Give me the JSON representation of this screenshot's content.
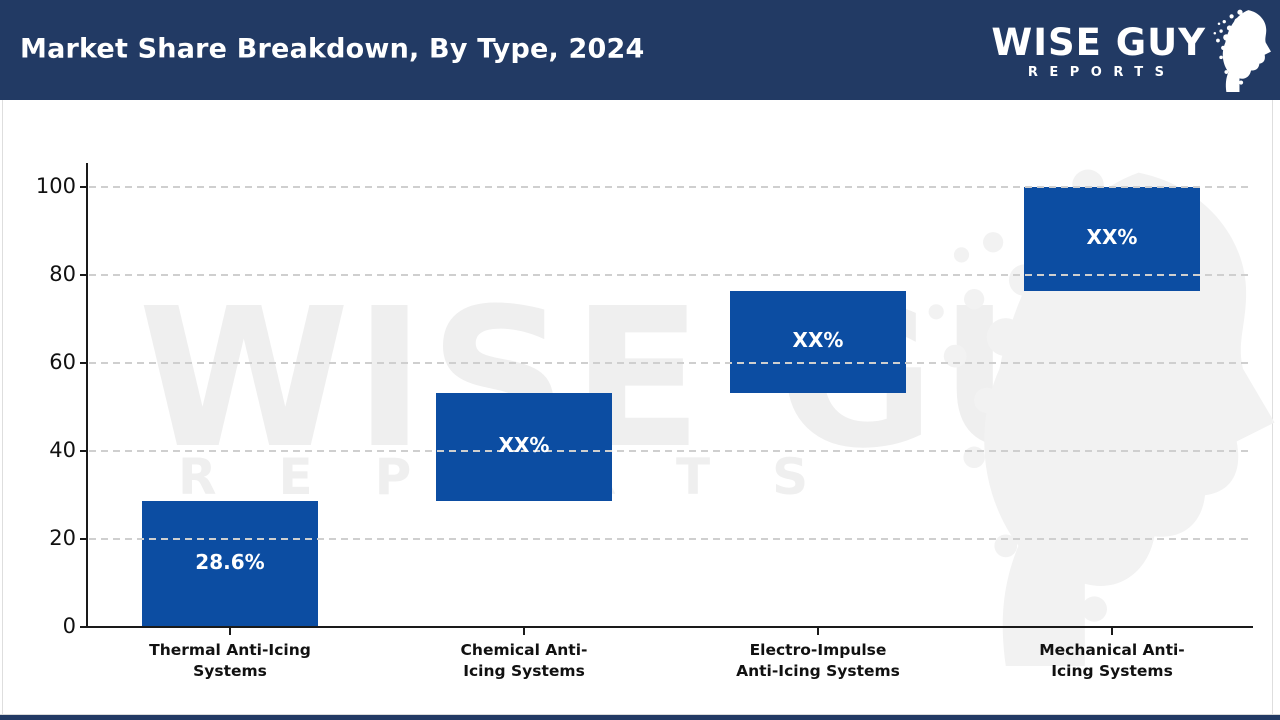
{
  "header": {
    "title": "Market Share Breakdown, By Type, 2024",
    "logo": {
      "line1": "WISE GUY",
      "line2": "REPORTS"
    }
  },
  "watermark": {
    "line1": "WISE GUY",
    "line2": "REPORTS"
  },
  "colors": {
    "header_bg": "#223A64",
    "footer_bg": "#223A64",
    "bar": "#0C4DA2",
    "bar_label": "#FFFFFF",
    "axis": "#1A1A1A",
    "grid_dash": "#CFCFCF",
    "watermark": "#EFEFEF"
  },
  "chart_data": {
    "type": "bar",
    "subtype": "waterfall",
    "title": "Market Share Breakdown, By Type, 2024",
    "categories": [
      "Thermal Anti-Icing Systems",
      "Chemical Anti-Icing Systems",
      "Electro-Impulse Anti-Icing Systems",
      "Mechanical Anti-Icing Systems"
    ],
    "category_lines": [
      [
        "Thermal Anti-Icing",
        "Systems"
      ],
      [
        "Chemical Anti-",
        "Icing Systems"
      ],
      [
        "Electro-Impulse",
        "Anti-Icing Systems"
      ],
      [
        "Mechanical Anti-",
        "Icing Systems"
      ]
    ],
    "segments": [
      {
        "label": "28.6%",
        "start": 0,
        "end": 28.6
      },
      {
        "label": "XX%",
        "start": 28.6,
        "end": 53.2
      },
      {
        "label": "XX%",
        "start": 53.2,
        "end": 76.4
      },
      {
        "label": "XX%",
        "start": 76.4,
        "end": 100
      }
    ],
    "yticks": [
      0,
      20,
      40,
      60,
      80,
      100
    ],
    "ylim": [
      0,
      105.5
    ],
    "grid": "dashed-horizontal",
    "xlabel": "",
    "ylabel": ""
  }
}
